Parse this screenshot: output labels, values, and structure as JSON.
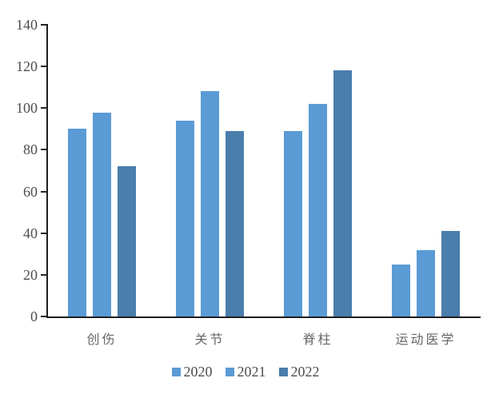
{
  "chart_data": {
    "type": "bar",
    "title": "",
    "xlabel": "",
    "ylabel": "",
    "categories": [
      "创伤",
      "关节",
      "脊柱",
      "运动医学"
    ],
    "series": [
      {
        "name": "2020",
        "color": "#5B9BD5",
        "values": [
          90,
          94,
          89,
          25
        ]
      },
      {
        "name": "2021",
        "color": "#5B9BD5",
        "values": [
          98,
          108,
          102,
          32
        ]
      },
      {
        "name": "2022",
        "color": "#4A7EAC",
        "values": [
          72,
          89,
          118,
          41
        ]
      }
    ],
    "ylim": [
      0,
      140
    ],
    "yticks": [
      0,
      20,
      40,
      60,
      80,
      100,
      120,
      140
    ],
    "grid": false,
    "legend_position": "bottom",
    "legend_labels": [
      "2020",
      "2021",
      "2022"
    ],
    "axis_color": "#1f1f1f",
    "tick_label_color": "#4d4d4d",
    "category_label_color": "#666666"
  }
}
